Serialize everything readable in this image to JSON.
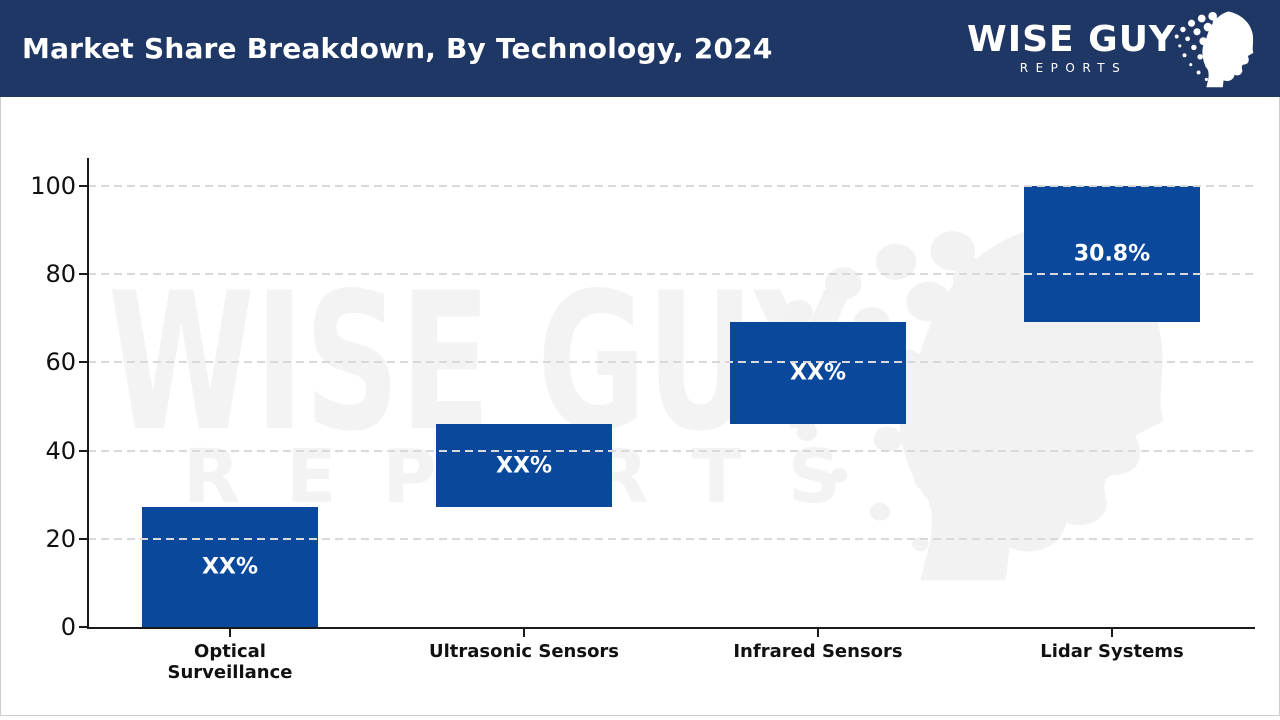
{
  "header": {
    "title": "Market Share Breakdown, By Technology, 2024",
    "logo": {
      "name": "WISE GUY",
      "tagline": "REPORTS"
    },
    "colors": {
      "background": "#1f3765",
      "text": "#ffffff"
    }
  },
  "watermark": {
    "line1": "WISE GUY",
    "line2": "REPORTS"
  },
  "chart_data": {
    "type": "bar",
    "subtype": "floating-waterfall-segments",
    "title": "Market Share Breakdown, By Technology, 2024",
    "categories": [
      {
        "label": "Optical Surveillance",
        "lines": [
          "Optical",
          "Surveillance"
        ]
      },
      {
        "label": "Ultrasonic Sensors",
        "lines": [
          "Ultrasonic Sensors"
        ]
      },
      {
        "label": "Infrared Sensors",
        "lines": [
          "Infrared Sensors"
        ]
      },
      {
        "label": "Lidar Systems",
        "lines": [
          "Lidar Systems"
        ]
      }
    ],
    "segments": [
      {
        "category": "Optical Surveillance",
        "start": 0,
        "end": 27.1,
        "value": 27.1,
        "label": "XX%"
      },
      {
        "category": "Ultrasonic Sensors",
        "start": 27.1,
        "end": 46.1,
        "value": 19.0,
        "label": "XX%"
      },
      {
        "category": "Infrared Sensors",
        "start": 46.1,
        "end": 69.2,
        "value": 23.1,
        "label": "XX%"
      },
      {
        "category": "Lidar Systems",
        "start": 69.2,
        "end": 100,
        "value": 30.8,
        "label": "30.8%"
      }
    ],
    "xlabel": "",
    "ylabel": "",
    "yticks": [
      0,
      20,
      40,
      60,
      80,
      100
    ],
    "ylim": [
      0,
      106
    ],
    "grid": {
      "visible": true,
      "style": "dashed",
      "on_top_of_bars": true
    },
    "legend": null,
    "colors": {
      "bar": "#0a489c",
      "bar_label": "#ffffff",
      "grid": "#d9d9d9",
      "axis": "#1a1a1a",
      "tick_text": "#111111",
      "watermark": "#f3f3f3"
    }
  }
}
